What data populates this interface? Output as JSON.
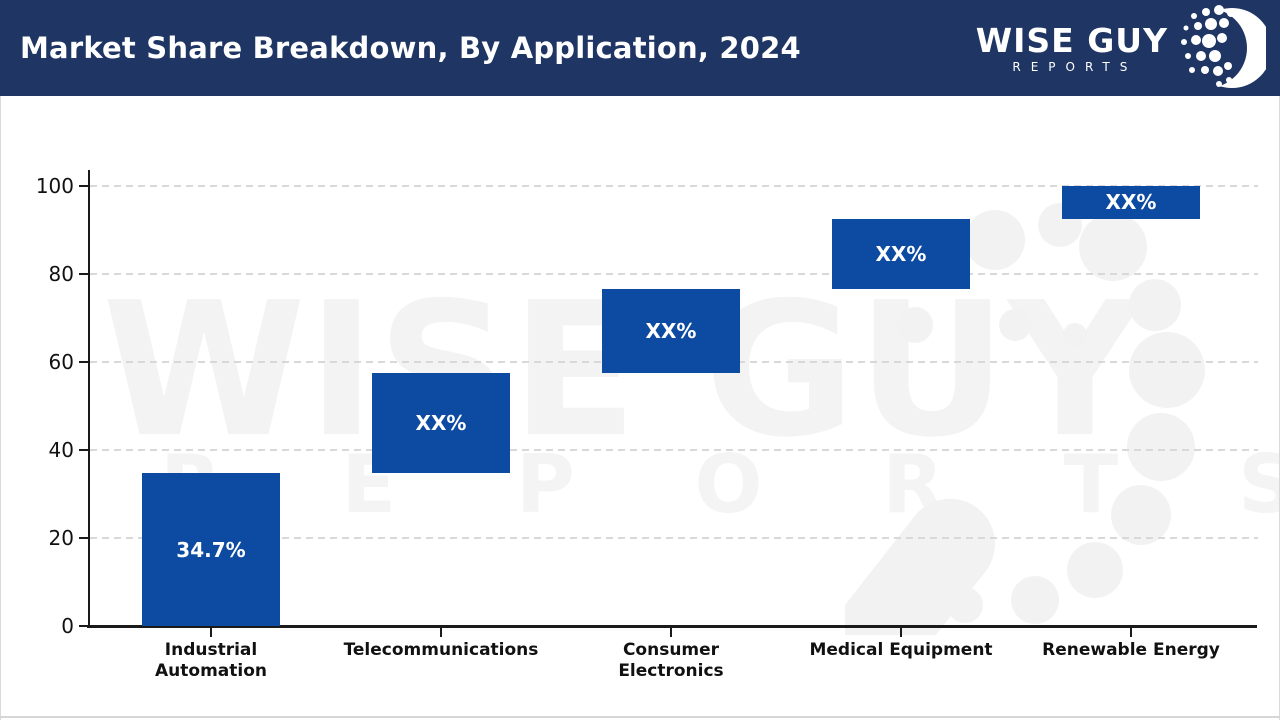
{
  "header": {
    "title": "Market Share Breakdown, By Application, 2024",
    "logo": {
      "line1": "WISE GUY",
      "line2": "REPORTS"
    }
  },
  "watermark": {
    "line1": "WISE GUY",
    "line2": "R E P O R T S"
  },
  "icons": {
    "logo_head": "dotted-face-profile",
    "watermark_head": "faint-dotted-face-profile"
  },
  "colors": {
    "header_bg": "#1f3564",
    "bar": "#0c4ba1",
    "grid": "#d8d8d8",
    "axis": "#1a1a1a",
    "value_label": "#ffffff",
    "watermark": "#f3f3f3"
  },
  "chart_data": {
    "type": "bar",
    "subtype": "waterfall",
    "title": "Market Share Breakdown, By Application, 2024",
    "xlabel": "",
    "ylabel": "",
    "ylim": [
      0,
      105
    ],
    "yticks": [
      0,
      20,
      40,
      60,
      80,
      100
    ],
    "grid": "horizontal-dashed",
    "legend": "none",
    "categories": [
      "Industrial Automation",
      "Telecommunications",
      "Consumer Electronics",
      "Medical Equipment",
      "Renewable Energy"
    ],
    "segments": [
      {
        "category": "Industrial Automation",
        "lines": [
          "Industrial",
          "Automation"
        ],
        "start": 0,
        "end": 34.7,
        "label": "34.7%"
      },
      {
        "category": "Telecommunications",
        "lines": [
          "Telecommunications"
        ],
        "start": 34.7,
        "end": 57.4,
        "label": "XX%"
      },
      {
        "category": "Consumer Electronics",
        "lines": [
          "Consumer",
          "Electronics"
        ],
        "start": 57.4,
        "end": 76.5,
        "label": "XX%"
      },
      {
        "category": "Medical Equipment",
        "lines": [
          "Medical Equipment"
        ],
        "start": 76.5,
        "end": 92.6,
        "label": "XX%"
      },
      {
        "category": "Renewable Energy",
        "lines": [
          "Renewable Energy"
        ],
        "start": 92.6,
        "end": 100,
        "label": "XX%"
      }
    ]
  }
}
